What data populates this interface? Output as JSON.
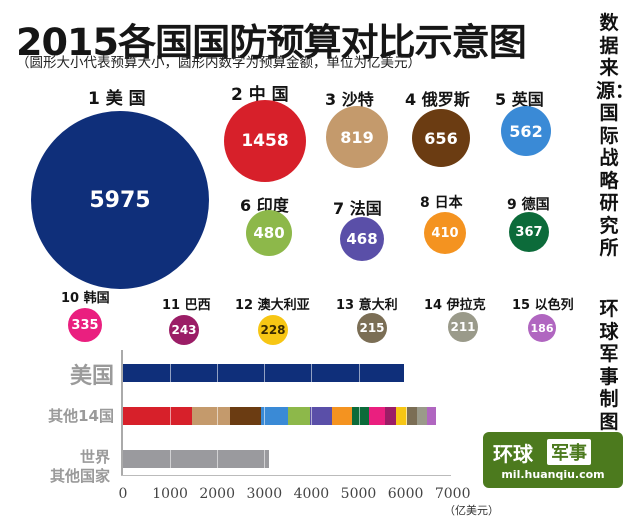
{
  "header": {
    "title": "2015各国国防预算对比示意图",
    "subtitle": "（圆形大小代表预算大小，圆形内数字为预算金额，单位为亿美元）"
  },
  "source_note": {
    "line1": "数据来源：国际战略研究所",
    "line2": "环球军事制图"
  },
  "countries": [
    {
      "rank": "1",
      "name": "美 国",
      "value": "5975",
      "color": "#0f2f7a"
    },
    {
      "rank": "2",
      "name": "中 国",
      "value": "1458",
      "color": "#d7202a"
    },
    {
      "rank": "3",
      "name": "沙特",
      "value": "819",
      "color": "#c49a6c"
    },
    {
      "rank": "4",
      "name": "俄罗斯",
      "value": "656",
      "color": "#6b3c12"
    },
    {
      "rank": "5",
      "name": "英国",
      "value": "562",
      "color": "#3a8ad6"
    },
    {
      "rank": "6",
      "name": "印度",
      "value": "480",
      "color": "#8db84a"
    },
    {
      "rank": "7",
      "name": "法国",
      "value": "468",
      "color": "#5a4fa8"
    },
    {
      "rank": "8",
      "name": "日本",
      "value": "410",
      "color": "#f49320"
    },
    {
      "rank": "9",
      "name": "德国",
      "value": "367",
      "color": "#0c6b3a"
    },
    {
      "rank": "10",
      "name": "韩国",
      "value": "335",
      "color": "#ea1f7f"
    },
    {
      "rank": "11",
      "name": "巴西",
      "value": "243",
      "color": "#9b1d66"
    },
    {
      "rank": "12",
      "name": "澳大利亚",
      "value": "228",
      "color": "#f7c614"
    },
    {
      "rank": "13",
      "name": "意大利",
      "value": "215",
      "color": "#7b6e55"
    },
    {
      "rank": "14",
      "name": "伊拉克",
      "value": "211",
      "color": "#9a9a8a"
    },
    {
      "rank": "15",
      "name": "以色列",
      "value": "186",
      "color": "#b066c0"
    }
  ],
  "bar_chart": {
    "rows": [
      {
        "label": "美国"
      },
      {
        "label": "其他14国"
      },
      {
        "label_line1": "世界",
        "label_line2": "其他国家"
      }
    ],
    "x_ticks": [
      "0",
      "1000",
      "2000",
      "3000",
      "4000",
      "5000",
      "6000",
      "7000"
    ],
    "unit": "（亿美元）"
  },
  "logo": {
    "cn_part1": "环球",
    "cn_part2": "军事",
    "url": "mil.huanqiu.com"
  },
  "chart_data": [
    {
      "type": "bubble",
      "title": "2015各国国防预算对比示意图",
      "subtitle": "圆形大小代表预算大小，圆形内数字为预算金额，单位为亿美元",
      "unit": "亿美元",
      "categories": [
        "美国",
        "中国",
        "沙特",
        "俄罗斯",
        "英国",
        "印度",
        "法国",
        "日本",
        "德国",
        "韩国",
        "巴西",
        "澳大利亚",
        "意大利",
        "伊拉克",
        "以色列"
      ],
      "values": [
        5975,
        1458,
        819,
        656,
        562,
        480,
        468,
        410,
        367,
        335,
        243,
        228,
        215,
        211,
        186
      ]
    },
    {
      "type": "bar",
      "orientation": "horizontal",
      "stacked": true,
      "categories": [
        "美国",
        "其他14国",
        "世界其他国家"
      ],
      "series": [
        {
          "name": "美国",
          "values": [
            5975,
            0,
            0
          ]
        },
        {
          "name": "中国",
          "values": [
            0,
            1458,
            0
          ]
        },
        {
          "name": "沙特",
          "values": [
            0,
            819,
            0
          ]
        },
        {
          "name": "俄罗斯",
          "values": [
            0,
            656,
            0
          ]
        },
        {
          "name": "英国",
          "values": [
            0,
            562,
            0
          ]
        },
        {
          "name": "印度",
          "values": [
            0,
            480,
            0
          ]
        },
        {
          "name": "法国",
          "values": [
            0,
            468,
            0
          ]
        },
        {
          "name": "日本",
          "values": [
            0,
            410,
            0
          ]
        },
        {
          "name": "德国",
          "values": [
            0,
            367,
            0
          ]
        },
        {
          "name": "韩国",
          "values": [
            0,
            335,
            0
          ]
        },
        {
          "name": "巴西",
          "values": [
            0,
            243,
            0
          ]
        },
        {
          "name": "澳大利亚",
          "values": [
            0,
            228,
            0
          ]
        },
        {
          "name": "意大利",
          "values": [
            0,
            215,
            0
          ]
        },
        {
          "name": "伊拉克",
          "values": [
            0,
            211,
            0
          ]
        },
        {
          "name": "以色列",
          "values": [
            0,
            186,
            0
          ]
        },
        {
          "name": "世界其他国家",
          "values": [
            0,
            0,
            3100
          ]
        }
      ],
      "xlabel": "亿美元",
      "xlim": [
        0,
        7000
      ],
      "x_ticks": [
        0,
        1000,
        2000,
        3000,
        4000,
        5000,
        6000,
        7000
      ],
      "grid": false,
      "legend": "none"
    }
  ]
}
